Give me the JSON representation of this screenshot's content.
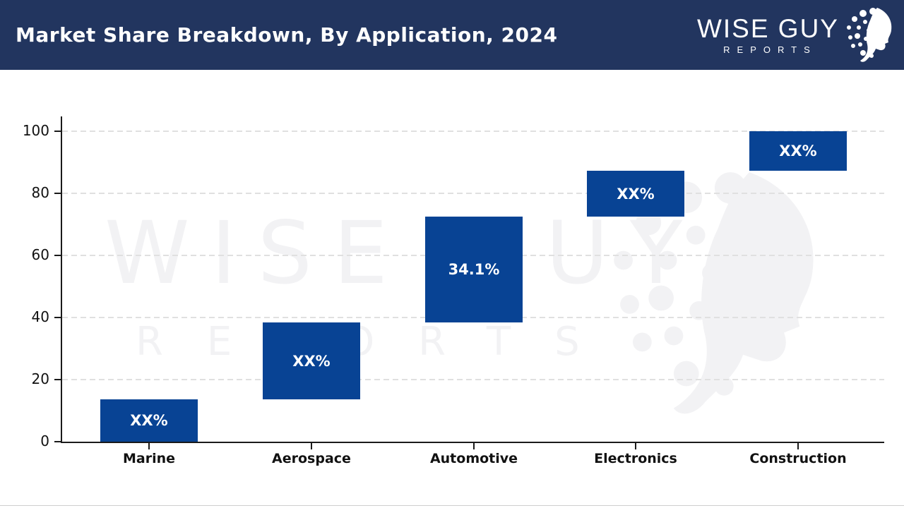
{
  "header": {
    "title": "Market Share Breakdown, By Application, 2024",
    "bg_color": "#22355f",
    "logo": {
      "line1": "WISE GUY",
      "line2": "REPORTS"
    }
  },
  "watermark": {
    "line1": "WISE GUY",
    "line2": "REPORTS"
  },
  "chart_data": {
    "type": "bar",
    "subtype": "waterfall",
    "title": "Market Share Breakdown, By Application, 2024",
    "categories": [
      "Marine",
      "Aerospace",
      "Automotive",
      "Electronics",
      "Construction"
    ],
    "segments": [
      {
        "category": "Marine",
        "start": 0,
        "end": 13.6,
        "value": null,
        "label": "XX%"
      },
      {
        "category": "Aerospace",
        "start": 13.6,
        "end": 38.4,
        "value": null,
        "label": "XX%"
      },
      {
        "category": "Automotive",
        "start": 38.4,
        "end": 72.5,
        "value": 34.1,
        "label": "34.1%"
      },
      {
        "category": "Electronics",
        "start": 72.5,
        "end": 87.3,
        "value": null,
        "label": "XX%"
      },
      {
        "category": "Construction",
        "start": 87.3,
        "end": 100,
        "value": null,
        "label": "XX%"
      }
    ],
    "y_ticks": [
      0,
      20,
      40,
      60,
      80,
      100
    ],
    "ylim": [
      0,
      104.8
    ],
    "grid": true,
    "legend": false,
    "xlabel": "",
    "ylabel": "",
    "bar_color": "#084394",
    "bar_label_color": "#ffffff",
    "gridline_color": "#e0e0e0",
    "axis_color": "#1a1a1a"
  }
}
